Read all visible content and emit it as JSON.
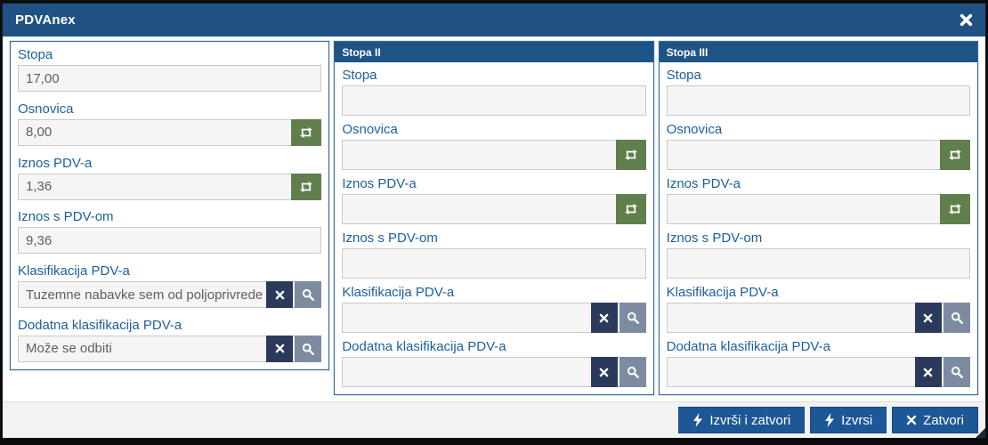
{
  "window": {
    "title": "PDVAnex"
  },
  "columns": [
    {
      "id": "stopa-1",
      "header": null,
      "fields": [
        {
          "name": "stopa",
          "label": "Stopa",
          "value": "17,00",
          "buttons": []
        },
        {
          "name": "osnovica",
          "label": "Osnovica",
          "value": "8,00",
          "buttons": [
            "recalculate"
          ]
        },
        {
          "name": "iznos-pdv",
          "label": "Iznos PDV-a",
          "value": "1,36",
          "buttons": [
            "recalculate"
          ]
        },
        {
          "name": "iznos-s-pdv",
          "label": "Iznos s PDV-om",
          "value": "9,36",
          "buttons": []
        },
        {
          "name": "klasifikacija-pdv",
          "label": "Klasifikacija PDV-a",
          "value": "Tuzemne nabavke sem od poljoprivrede",
          "buttons": [
            "clear",
            "search"
          ]
        },
        {
          "name": "dodatna-klasifikacija-pdv",
          "label": "Dodatna klasifikacija PDV-a",
          "value": "Može se odbiti",
          "buttons": [
            "clear",
            "search"
          ]
        }
      ]
    },
    {
      "id": "stopa-2",
      "header": "Stopa II",
      "fields": [
        {
          "name": "stopa",
          "label": "Stopa",
          "value": "",
          "buttons": []
        },
        {
          "name": "osnovica",
          "label": "Osnovica",
          "value": "",
          "buttons": [
            "recalculate"
          ]
        },
        {
          "name": "iznos-pdv",
          "label": "Iznos PDV-a",
          "value": "",
          "buttons": [
            "recalculate"
          ]
        },
        {
          "name": "iznos-s-pdv",
          "label": "Iznos s PDV-om",
          "value": "",
          "buttons": []
        },
        {
          "name": "klasifikacija-pdv",
          "label": "Klasifikacija PDV-a",
          "value": "",
          "buttons": [
            "clear",
            "search"
          ]
        },
        {
          "name": "dodatna-klasifikacija-pdv",
          "label": "Dodatna klasifikacija PDV-a",
          "value": "",
          "buttons": [
            "clear",
            "search"
          ]
        }
      ]
    },
    {
      "id": "stopa-3",
      "header": "Stopa III",
      "fields": [
        {
          "name": "stopa",
          "label": "Stopa",
          "value": "",
          "buttons": []
        },
        {
          "name": "osnovica",
          "label": "Osnovica",
          "value": "",
          "buttons": [
            "recalculate"
          ]
        },
        {
          "name": "iznos-pdv",
          "label": "Iznos PDV-a",
          "value": "",
          "buttons": [
            "recalculate"
          ]
        },
        {
          "name": "iznos-s-pdv",
          "label": "Iznos s PDV-om",
          "value": "",
          "buttons": []
        },
        {
          "name": "klasifikacija-pdv",
          "label": "Klasifikacija PDV-a",
          "value": "",
          "buttons": [
            "clear",
            "search"
          ]
        },
        {
          "name": "dodatna-klasifikacija-pdv",
          "label": "Dodatna klasifikacija PDV-a",
          "value": "",
          "buttons": [
            "clear",
            "search"
          ]
        }
      ]
    }
  ],
  "icons": {
    "recalculate": "recalculate-icon",
    "clear": "clear-icon",
    "search": "search-icon",
    "titlebar_close": "close-icon",
    "footer_bolt": "lightning-icon",
    "footer_close": "close-icon"
  },
  "footer": {
    "buttons": [
      {
        "label": "Izvrši i zatvori",
        "icon": "lightning-icon"
      },
      {
        "label": "Izvrsi",
        "icon": "lightning-icon"
      },
      {
        "label": "Zatvori",
        "icon": "close-icon"
      }
    ]
  },
  "colors": {
    "titlebar": "#1F5282",
    "panel_header": "#1D5486",
    "panel_border": "#35689C",
    "label_blue": "#1C5F9E",
    "button_blue": "#1D5795",
    "green_button": "#617E4D",
    "navy_button": "#2B3A5C",
    "slate_button": "#7D8BA1",
    "input_bg": "#F5F5F5"
  }
}
